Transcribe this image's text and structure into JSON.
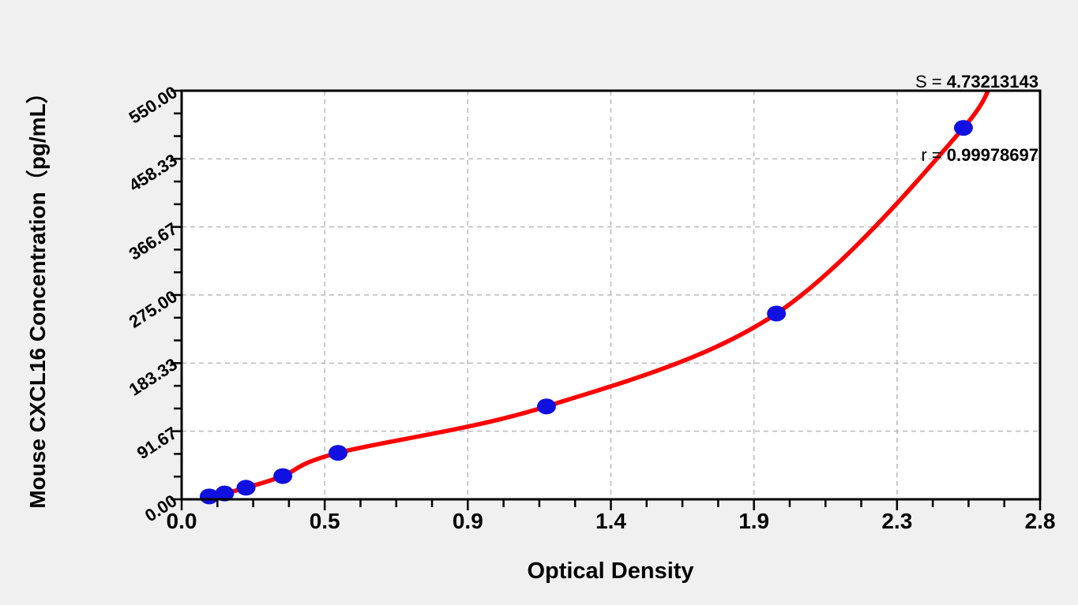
{
  "annotations": {
    "s_prefix": "S = ",
    "s_value": "4.73213143",
    "r_prefix": "r = ",
    "r_value": "0.99978697"
  },
  "chart_data": {
    "type": "scatter",
    "title": "",
    "xlabel": "Optical Density",
    "ylabel": "Mouse CXCL16 Concentration（pg/mL）",
    "xlim": [
      0,
      2.8
    ],
    "ylim": [
      0,
      550
    ],
    "x_tick_labels": [
      "0.0",
      "0.5",
      "0.9",
      "1.4",
      "1.9",
      "2.3",
      "2.8"
    ],
    "y_tick_labels": [
      "0.00",
      "91.67",
      "183.33",
      "275.00",
      "366.67",
      "458.33",
      "550.00"
    ],
    "x_minor_ticks_per_division": 3,
    "y_minor_ticks_per_division": 2,
    "grid": "dashed gray lines at major ticks, plot framed in black",
    "legend_position": "none",
    "points": [
      {
        "od": 0.09,
        "concentration": 3.9
      },
      {
        "od": 0.14,
        "concentration": 7.8
      },
      {
        "od": 0.21,
        "concentration": 15.6
      },
      {
        "od": 0.33,
        "concentration": 31.25
      },
      {
        "od": 0.51,
        "concentration": 62.5
      },
      {
        "od": 1.19,
        "concentration": 125
      },
      {
        "od": 1.94,
        "concentration": 250
      },
      {
        "od": 2.55,
        "concentration": 500
      }
    ],
    "curve": {
      "description": "red regression curve through the standard points",
      "extend_start": {
        "od": 0.072,
        "concentration": 0.5
      },
      "extend_end": {
        "od": 2.645,
        "concentration": 585
      }
    },
    "stats": {
      "S": "4.73213143",
      "r": "0.99978697"
    }
  },
  "colors": {
    "background": "#f0f0f0",
    "plot_background": "#ffffff",
    "axis": "#000000",
    "grid": "#bbbbbb",
    "curve": "#ff0000",
    "point": "#1010e0",
    "text": "#000000"
  }
}
